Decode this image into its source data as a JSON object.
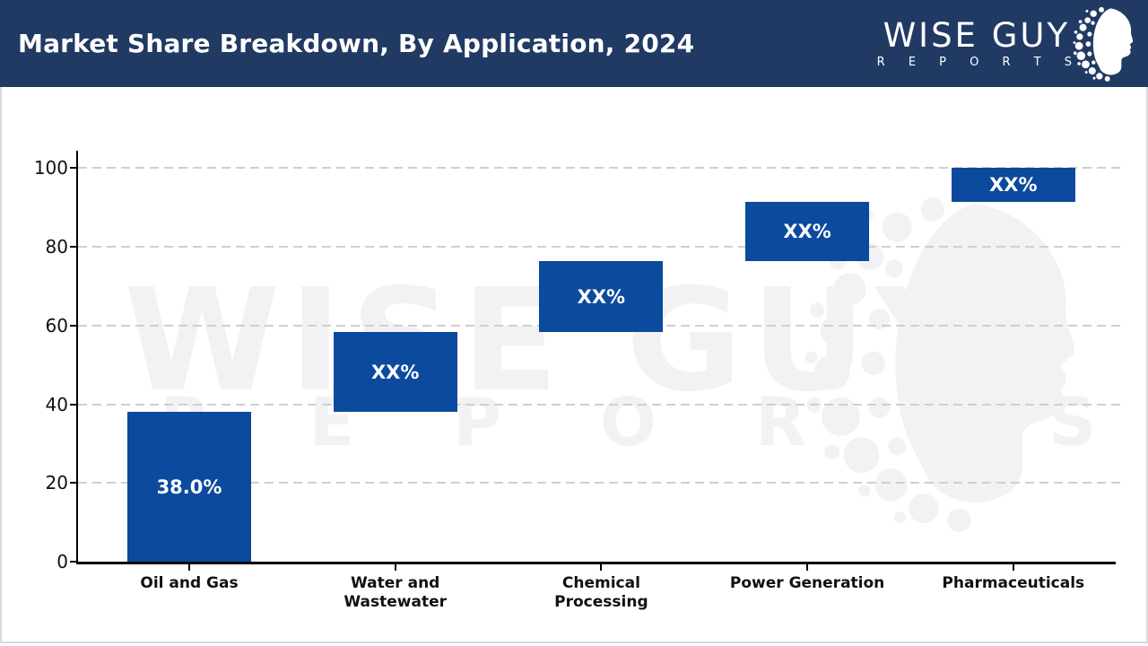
{
  "header": {
    "title": "Market Share Breakdown, By Application, 2024",
    "logo": {
      "line1": "WISE GUY",
      "line2": "REPORTS",
      "head_icon": "dotted-head-profile-icon"
    }
  },
  "watermark": {
    "line1": "WISE GUY",
    "line2": "R E P O R T S"
  },
  "chart_data": {
    "type": "bar",
    "subtype": "floating-segment-waterfall",
    "title": "Market Share Breakdown, By Application, 2024",
    "categories": [
      "Oil and Gas",
      "Water and Wastewater",
      "Chemical Processing",
      "Power Generation",
      "Pharmaceuticals"
    ],
    "tick_labels": [
      "Oil and Gas",
      "Water and\nWastewater",
      "Chemical\nProcessing",
      "Power Generation",
      "Pharmaceuticals"
    ],
    "series": [
      {
        "name": "Market Share (%)",
        "segments": [
          {
            "category": "Oil and Gas",
            "start": 0,
            "end": 38,
            "label": "38.0%"
          },
          {
            "category": "Water and Wastewater",
            "start": 38,
            "end": 58.3,
            "label": "XX%"
          },
          {
            "category": "Chemical Processing",
            "start": 58.3,
            "end": 76.4,
            "label": "XX%"
          },
          {
            "category": "Power Generation",
            "start": 76.4,
            "end": 91.5,
            "label": "XX%"
          },
          {
            "category": "Pharmaceuticals",
            "start": 91.5,
            "end": 100,
            "label": "XX%"
          }
        ]
      }
    ],
    "xlabel": "",
    "ylabel": "",
    "ylim": [
      0,
      104
    ],
    "yticks": [
      0,
      20,
      40,
      60,
      80,
      100
    ],
    "grid": "horizontal-dashed",
    "legend": "none",
    "colors": {
      "bar": "#0b4a9d",
      "header_bg": "#213a64",
      "grid_line": "#cfcfcf",
      "axis": "#000000",
      "watermark": "#f2f2f4",
      "label_text": "#ffffff"
    }
  }
}
